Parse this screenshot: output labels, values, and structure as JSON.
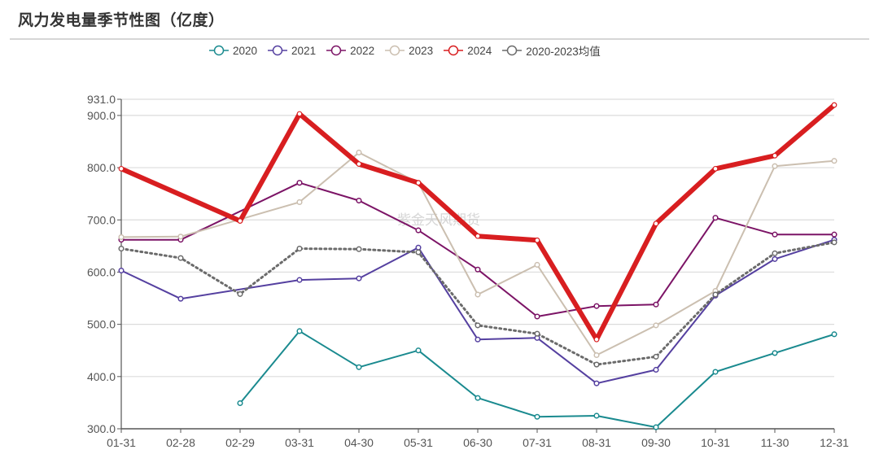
{
  "title": "风力发电量季节性图（亿度）",
  "watermark": "紫金天风期货",
  "chart_data": {
    "type": "line",
    "title": "风力发电量季节性图（亿度）",
    "xlabel": "",
    "ylabel": "",
    "ylim": [
      300,
      931
    ],
    "yticks": [
      "300.0",
      "400.0",
      "500.0",
      "600.0",
      "700.0",
      "800.0",
      "900.0",
      "931.0"
    ],
    "ytick_values": [
      300,
      400,
      500,
      600,
      700,
      800,
      900,
      931
    ],
    "grid": true,
    "legend_position": "top-center",
    "categories": [
      "01-31",
      "02-28",
      "02-29",
      "03-31",
      "04-30",
      "05-31",
      "06-30",
      "07-31",
      "08-31",
      "09-30",
      "10-31",
      "11-30",
      "12-31"
    ],
    "series": [
      {
        "name": "2020",
        "color": "#1a8a8f",
        "dashed": false,
        "bold": false,
        "values": [
          null,
          null,
          349,
          487,
          418,
          450,
          359,
          323,
          325,
          303,
          409,
          445,
          481
        ]
      },
      {
        "name": "2021",
        "color": "#5540a0",
        "dashed": false,
        "bold": false,
        "values": [
          603,
          549,
          null,
          585,
          588,
          647,
          471,
          474,
          387,
          413,
          555,
          625,
          662
        ]
      },
      {
        "name": "2022",
        "color": "#7c1466",
        "dashed": false,
        "bold": false,
        "values": [
          662,
          662,
          null,
          771,
          737,
          680,
          605,
          515,
          535,
          538,
          704,
          672,
          672
        ]
      },
      {
        "name": "2023",
        "color": "#cbbfb0",
        "dashed": false,
        "bold": false,
        "values": [
          667,
          668,
          null,
          734,
          829,
          771,
          557,
          614,
          441,
          498,
          564,
          803,
          813
        ]
      },
      {
        "name": "2024",
        "color": "#d81e20",
        "dashed": false,
        "bold": true,
        "values": [
          798,
          null,
          698,
          903,
          807,
          771,
          669,
          661,
          471,
          693,
          798,
          823,
          920
        ]
      },
      {
        "name": "2020-2023均值",
        "color": "#6b6b6b",
        "dashed": true,
        "bold": false,
        "values": [
          645,
          627,
          558,
          645,
          644,
          638,
          498,
          482,
          423,
          438,
          557,
          636,
          657
        ]
      }
    ]
  }
}
